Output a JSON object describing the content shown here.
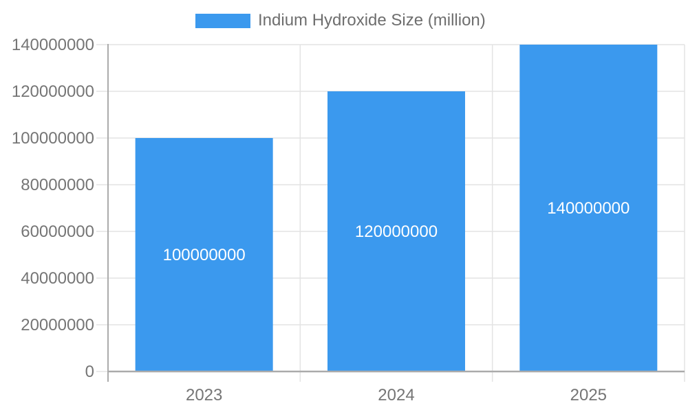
{
  "legend": {
    "label": "Indium Hydroxide Size (million)"
  },
  "chart_data": {
    "type": "bar",
    "title": "",
    "categories": [
      "2023",
      "2024",
      "2025"
    ],
    "values": [
      100000000,
      120000000,
      140000000
    ],
    "bar_labels": [
      "100000000",
      "120000000",
      "140000000"
    ],
    "series": [
      {
        "name": "Indium Hydroxide Size (million)",
        "values": [
          100000000,
          120000000,
          140000000
        ]
      }
    ],
    "xlabel": "",
    "ylabel": "",
    "ylim": [
      0,
      140000000
    ],
    "ytick_step": 20000000,
    "ytick_labels": [
      "0",
      "20000000",
      "40000000",
      "60000000",
      "80000000",
      "100000000",
      "120000000",
      "140000000"
    ],
    "grid": true,
    "legend_position": "top",
    "colors": {
      "bar": "#3B99EE",
      "grid": "#e3e3e3",
      "axis": "#ababab",
      "tick_text": "#757575",
      "bar_label_text": "#ffffff",
      "legend_text": "#6e6e6e"
    }
  }
}
